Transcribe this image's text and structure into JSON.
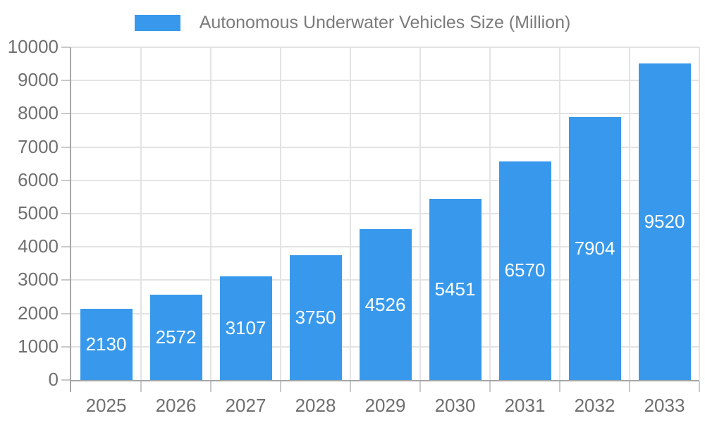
{
  "page": {
    "background": "#ffffff"
  },
  "legend": {
    "position": "top",
    "label": "Autonomous Underwater Vehicles Size (Million)"
  },
  "chart_data": {
    "type": "bar",
    "title": "Autonomous Underwater Vehicles Size (Million)",
    "series_name": "Autonomous Underwater Vehicles Size (Million)",
    "categories": [
      "2025",
      "2026",
      "2027",
      "2028",
      "2029",
      "2030",
      "2031",
      "2032",
      "2033"
    ],
    "values": [
      2130,
      2572,
      3107,
      3750,
      4526,
      5451,
      6570,
      7904,
      9520
    ],
    "value_labels_visible": true,
    "xlabel": "",
    "ylabel": "",
    "ylim": [
      0,
      10000
    ],
    "yticks": [
      0,
      1000,
      2000,
      3000,
      4000,
      5000,
      6000,
      7000,
      8000,
      9000,
      10000
    ],
    "grid": true,
    "legend_position": "top",
    "colors": {
      "bar": "#3899ec",
      "value_label": "#ffffff",
      "tick_text": "#707070",
      "legend_text": "#7b7b7b",
      "grid": "#e3e3e3",
      "tick_mark": "#c9c9c9",
      "axis": "#a6a6a6",
      "background": "#ffffff"
    }
  }
}
